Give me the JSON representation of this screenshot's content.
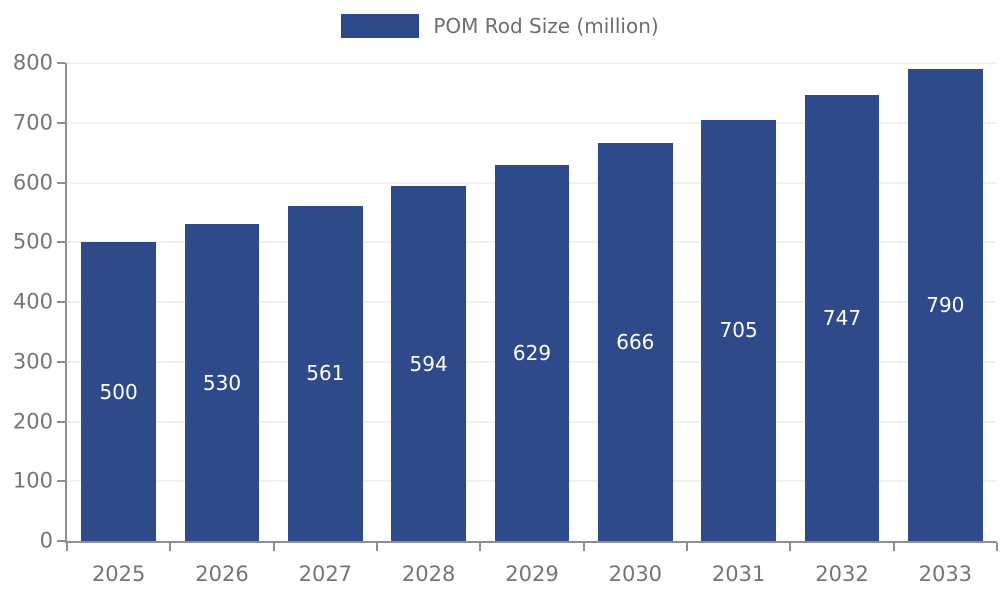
{
  "chart_data": {
    "type": "bar",
    "title": "",
    "series_name": "POM Rod Size (million)",
    "categories": [
      "2025",
      "2026",
      "2027",
      "2028",
      "2029",
      "2030",
      "2031",
      "2032",
      "2033"
    ],
    "values": [
      500,
      530,
      561,
      594,
      629,
      666,
      705,
      747,
      790
    ],
    "xlabel": "",
    "ylabel": "",
    "ylim": [
      0,
      800
    ],
    "yticks": [
      0,
      100,
      200,
      300,
      400,
      500,
      600,
      700,
      800
    ],
    "grid": true,
    "legend_position": "top",
    "colors": {
      "bar": "#2e4a8a",
      "bar_value_label": "#ffffff",
      "gridline": "#e3e3e3",
      "axis_line": "#8f8f8f",
      "tick_label": "#757575",
      "legend_text": "#6e6e6e"
    }
  },
  "legend": {
    "label": "POM Rod Size (million)"
  }
}
